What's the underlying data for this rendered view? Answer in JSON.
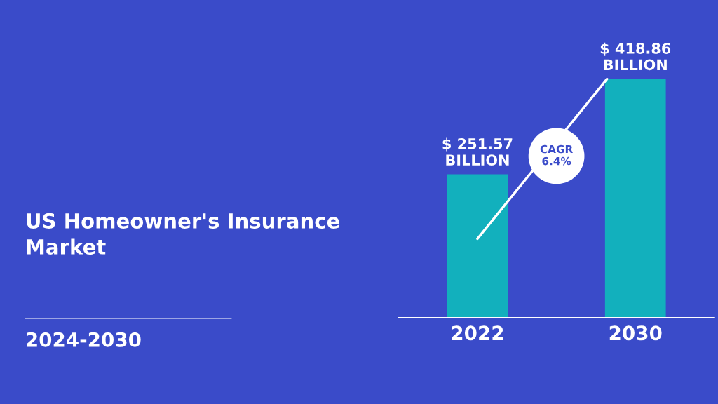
{
  "chart_data": {
    "type": "bar",
    "title": "US Homeowner's Insurance\nMarket",
    "subtitle": "2024-2030",
    "categories": [
      "2022",
      "2030"
    ],
    "values": [
      251.57,
      418.86
    ],
    "value_labels": [
      "$ 251.57\nBILLION",
      "$ 418.86\nBILLION"
    ],
    "color": "#12b0bd",
    "annotations": [
      "CAGR\n6.4%"
    ],
    "grid": false,
    "legend": false
  }
}
